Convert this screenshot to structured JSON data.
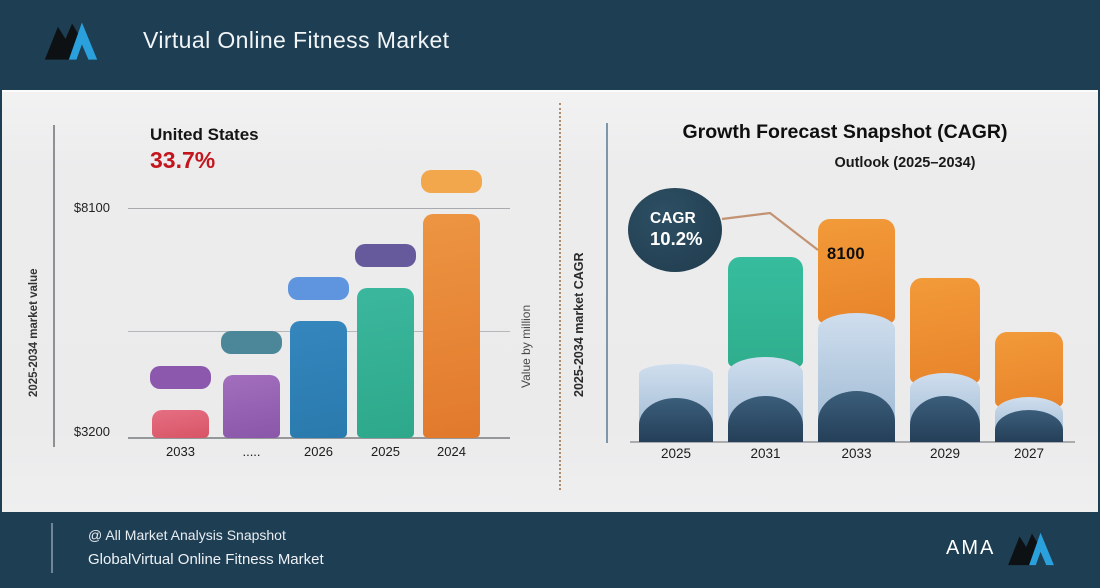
{
  "header": {
    "title": "Virtual Online Fitness Market",
    "logo": "ama-mountain-logo"
  },
  "left_chart": {
    "region_label": "United States",
    "highlight_value": "33.7%",
    "y_axis_label": "2025-2034 market value",
    "tick_top": "$8100",
    "tick_bottom": "$3200"
  },
  "divider_label": "Value by million",
  "right_chart": {
    "title": "Growth Forecast Snapshot (CAGR)",
    "subtitle": "Outlook (2025–2034)",
    "y_axis_label": "2025-2034 market CAGR",
    "badge_line1": "CAGR",
    "badge_line2": "10.2%",
    "annotation": "8100"
  },
  "footer": {
    "line1": "@ All Market Analysis Snapshot",
    "line2": "GlobalVirtual Online Fitness Market",
    "brand": "AMA"
  },
  "colors": {
    "header_bg": "#1e3e53",
    "panel_bg": "#ececed",
    "accent_red": "#c3151c",
    "badge_navy": "#264457",
    "connector": "#c29272",
    "logo_blue": "#2aa0dc",
    "logo_black": "#0e1114",
    "navy_top": "#3b5e7b",
    "navy_bottom": "#253f58",
    "lightblue_top": "#cfdeee",
    "lightblue_bottom": "#9cb7d1",
    "teal_top": "#36bd9e",
    "teal_bottom": "#2fae8d",
    "orange_top": "#f29a39",
    "orange_bottom": "#e8842b"
  },
  "chart_data": [
    {
      "type": "bar",
      "title": "United States",
      "callout_value": "33.7%",
      "categories": [
        "2033",
        ".....",
        "2026",
        "2025",
        "2024"
      ],
      "values": [
        3800,
        4550,
        5700,
        6400,
        8000
      ],
      "ylabel": "2025-2034 market value",
      "xlabel": "",
      "unit_note": "Value by million",
      "y_ticks": [
        3200,
        8100
      ],
      "ylim": [
        3200,
        8700
      ],
      "grid": true,
      "legend": false,
      "bar_colors": [
        [
          "#e66e83",
          "#d75565"
        ],
        [
          "#a26ebd",
          "#8a57a9"
        ],
        [
          "#3486bd",
          "#2a7aad"
        ],
        [
          "#3bb79e",
          "#2da88a"
        ],
        [
          "#ec9542",
          "#e2792c"
        ]
      ],
      "cap_colors": [
        "#8c58ae",
        "#4b8799",
        "#5f95de",
        "#665a9c",
        "#f2a74c"
      ]
    },
    {
      "type": "stacked-bar",
      "title": "Growth Forecast Snapshot (CAGR)",
      "subtitle": "Outlook (2025–2034)",
      "cagr": "10.2%",
      "ylabel": "2025-2034 market CAGR",
      "categories": [
        "2025",
        "2031",
        "2033",
        "2029",
        "2027"
      ],
      "annotated_total": {
        "category": "2033",
        "value": 8100
      },
      "totals_estimated": [
        2830,
        6720,
        8100,
        5960,
        3990
      ],
      "bars": [
        {
          "label": "2025",
          "segments": [
            [
              "navy",
              1600
            ],
            [
              "lightblue",
              1230
            ]
          ]
        },
        {
          "label": "2031",
          "segments": [
            [
              "navy",
              1670
            ],
            [
              "lightblue",
              1420
            ],
            [
              "teal",
              3630
            ]
          ]
        },
        {
          "label": "2033",
          "segments": [
            [
              "navy",
              1850
            ],
            [
              "lightblue",
              2840
            ],
            [
              "orange",
              3410
            ]
          ]
        },
        {
          "label": "2029",
          "segments": [
            [
              "navy",
              1670
            ],
            [
              "lightblue",
              840
            ],
            [
              "orange",
              3450
            ]
          ]
        },
        {
          "label": "2027",
          "segments": [
            [
              "navy",
              1160
            ],
            [
              "lightblue",
              470
            ],
            [
              "orange",
              2360
            ]
          ]
        }
      ],
      "grid": false,
      "legend": false
    }
  ]
}
